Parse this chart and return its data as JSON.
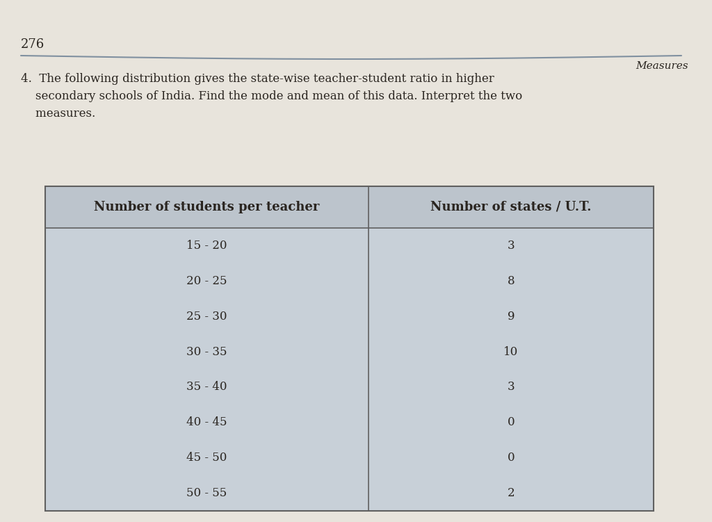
{
  "page_number": "276",
  "header_right": "Measures",
  "question_text_line1": "4.  The following distribution gives the state-wise teacher-student ratio in higher",
  "question_text_line2": "    secondary schools of India. Find the mode and mean of this data. Interpret the two",
  "question_text_line3": "    measures.",
  "col1_header": "Number of students per teacher",
  "col2_header": "Number of states / U.T.",
  "col1_rows": [
    "15 - 20",
    "20 - 25",
    "25 - 30",
    "30 - 35",
    "35 - 40",
    "40 - 45",
    "45 - 50",
    "50 - 55"
  ],
  "col2_rows": [
    "3",
    "8",
    "9",
    "10",
    "3",
    "0",
    "0",
    "2"
  ],
  "page_bg": "#e8e4dc",
  "table_bg": "#c8d0d8",
  "header_bg": "#bcc4cc",
  "text_color": "#2a2520",
  "line_color": "#606060",
  "divider_line_color": "#808080",
  "top_line_color": "#8090a0",
  "figsize": [
    10.24,
    7.51
  ],
  "dpi": 100
}
